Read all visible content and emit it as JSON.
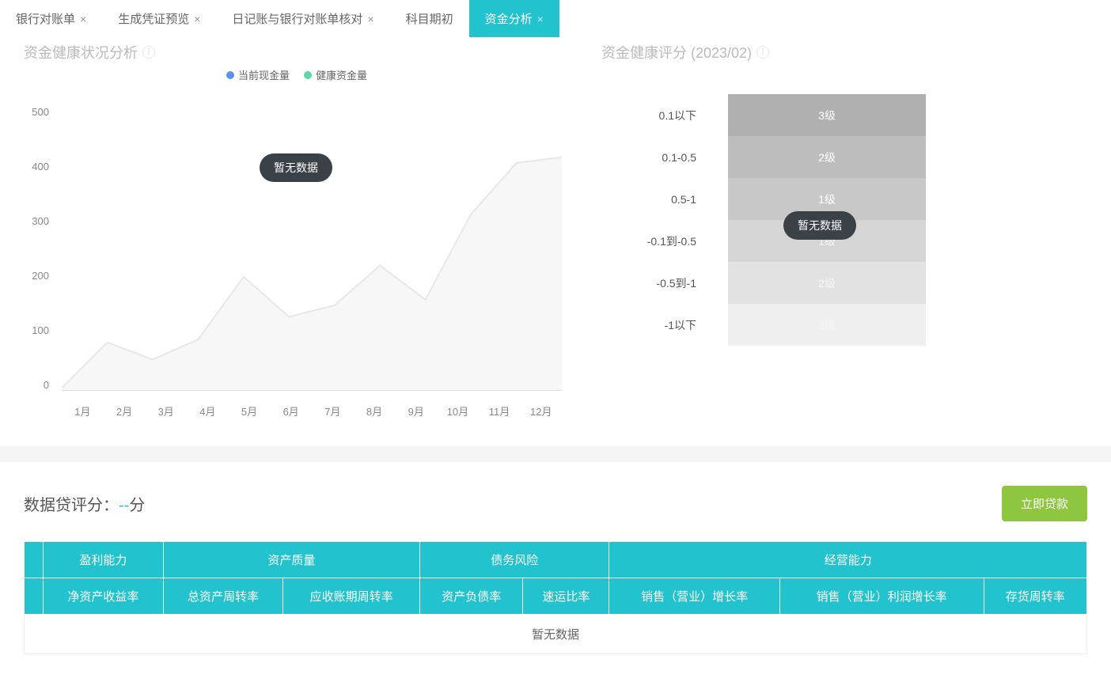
{
  "tabs": [
    {
      "label": "银行对账单",
      "closable": true,
      "active": false
    },
    {
      "label": "生成凭证预览",
      "closable": true,
      "active": false
    },
    {
      "label": "日记账与银行对账单核对",
      "closable": true,
      "active": false
    },
    {
      "label": "科目期初",
      "closable": false,
      "active": false
    },
    {
      "label": "资金分析",
      "closable": true,
      "active": true
    }
  ],
  "health_chart": {
    "title": "资金健康状况分析",
    "legend": [
      {
        "label": "当前现金量",
        "color": "#5b8ff9"
      },
      {
        "label": "健康资金量",
        "color": "#5ad8a6"
      }
    ],
    "no_data_label": "暂无数据",
    "y_ticks": [
      "500",
      "400",
      "300",
      "200",
      "100",
      "0"
    ],
    "ylim": [
      0,
      500
    ],
    "x_labels": [
      "1月",
      "2月",
      "3月",
      "4月",
      "5月",
      "6月",
      "7月",
      "8月",
      "9月",
      "10月",
      "11月",
      "12月"
    ],
    "values": [
      5,
      85,
      55,
      90,
      200,
      130,
      150,
      220,
      160,
      310,
      400,
      410
    ],
    "line_color": "#e8e8e8",
    "tick_color": "#888888",
    "baseline_color": "#dddddd",
    "chart_bg": "#ffffff"
  },
  "rating_chart": {
    "title": "资金健康评分 (2023/02)",
    "no_data_label": "暂无数据",
    "rows": [
      {
        "label": "0.1以下",
        "rank": "3级",
        "color": "#b0b0b0"
      },
      {
        "label": "0.1-0.5",
        "rank": "2级",
        "color": "#bdbdbd"
      },
      {
        "label": "0.5-1",
        "rank": "1级",
        "color": "#c8c8c8"
      },
      {
        "label": "-0.1到-0.5",
        "rank": "1级",
        "color": "#d5d5d5"
      },
      {
        "label": "-0.5到-1",
        "rank": "2级",
        "color": "#e2e2e2"
      },
      {
        "label": "-1以下",
        "rank": "3级",
        "color": "#efefef"
      }
    ],
    "label_color": "#555555",
    "badge_bg": "#3a4147"
  },
  "score_section": {
    "title_prefix": "数据贷评分：",
    "score": "--",
    "unit": "分",
    "button_label": "立即贷款",
    "button_color": "#8ec63f",
    "header_bg": "#22c3ce",
    "group_headers": [
      "",
      "盈利能力",
      "资产质量",
      "债务风险",
      "经营能力"
    ],
    "group_spans": [
      1,
      1,
      2,
      2,
      3
    ],
    "sub_headers": [
      "",
      "净资产收益率",
      "总资产周转率",
      "应收账期周转率",
      "资产负债率",
      "速运比率",
      "销售（营业）增长率",
      "销售（营业）利润增长率",
      "存货周转率"
    ],
    "no_data": "暂无数据"
  }
}
